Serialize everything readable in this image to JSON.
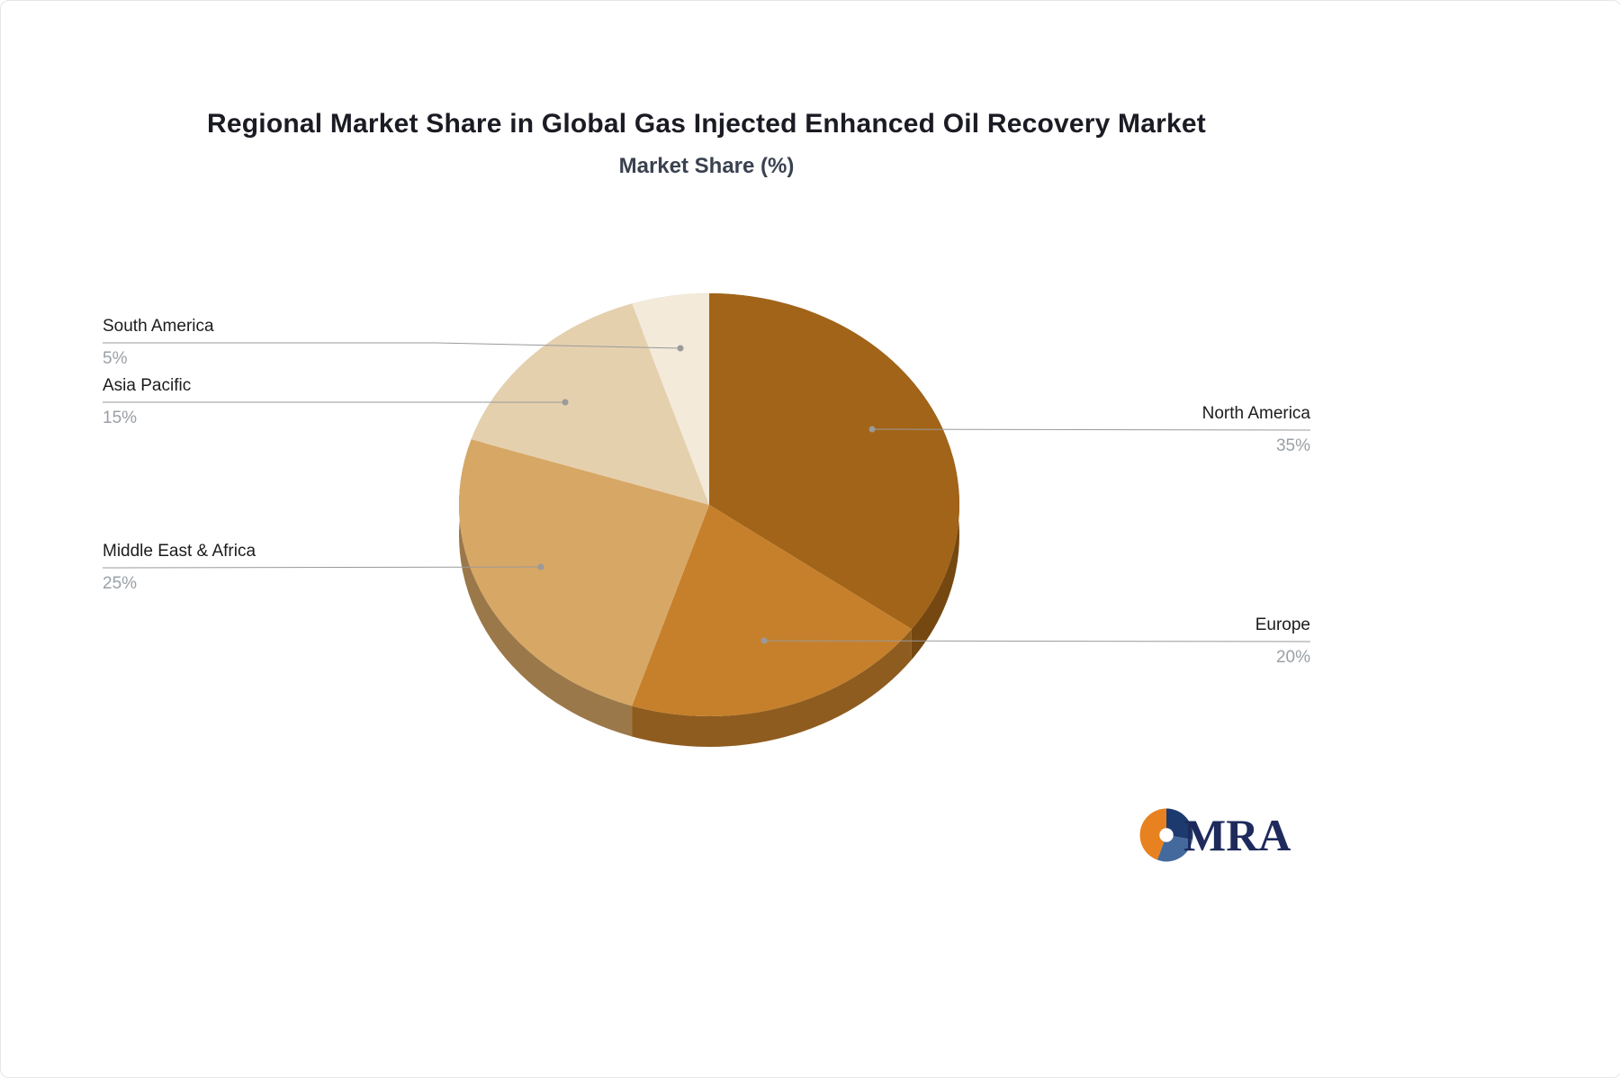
{
  "header": {
    "title": "Regional Market Share in Global Gas Injected Enhanced Oil Recovery Market",
    "subtitle": "Market Share (%)"
  },
  "chart_data": {
    "type": "pie",
    "title": "Regional Market Share in Global Gas Injected Enhanced Oil Recovery Market",
    "subtitle": "Market Share (%)",
    "unit": "%",
    "labels": [
      "North America",
      "Europe",
      "Middle East & Africa",
      "Asia Pacific",
      "South America"
    ],
    "values": [
      35,
      20,
      25,
      15,
      5
    ],
    "percent_labels": [
      "35%",
      "20%",
      "25%",
      "15%",
      "5%"
    ],
    "colors": [
      "#a26418",
      "#c6802b",
      "#d7a765",
      "#e5d0ae",
      "#f3ead9"
    ],
    "start_angle_deg": -90,
    "direction": "clockwise",
    "style": "3d-pie",
    "legend_position": "none",
    "label_sides": [
      "right",
      "right",
      "left",
      "left",
      "left"
    ]
  },
  "colors": {
    "title": "#1b1b24",
    "subtitle": "#3a4150",
    "label": "#1c1c1c",
    "value": "#9aa0a6",
    "line": "#9a9a9a",
    "background": "#ffffff"
  },
  "logo": {
    "text": "MRA",
    "icon_colors": {
      "orange": "#e8811f",
      "navy": "#1d3a6e",
      "blue": "#44699d"
    },
    "text_color": "#1e2a5c"
  }
}
